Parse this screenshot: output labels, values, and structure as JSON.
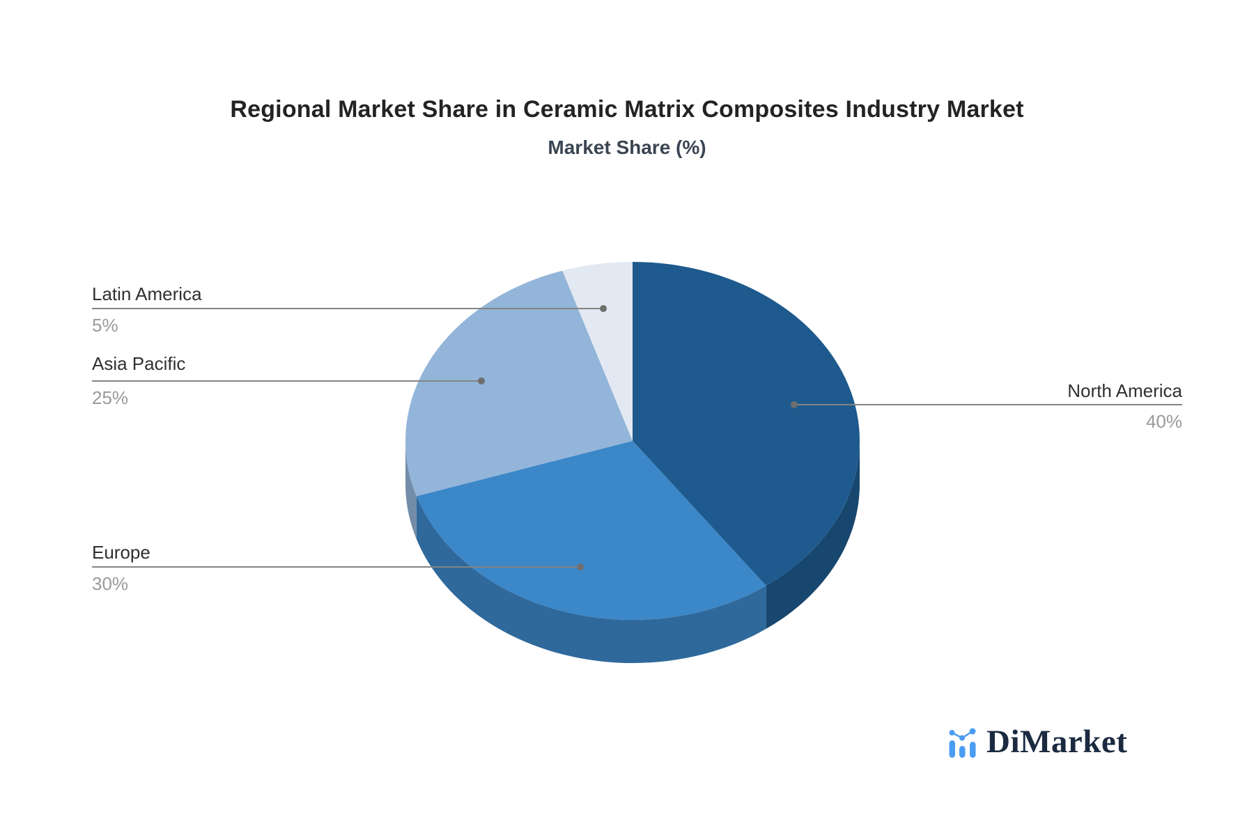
{
  "title": "Regional Market Share in Ceramic Matrix Composites Industry Market",
  "subtitle": "Market Share (%)",
  "brand": {
    "name": "DiMarket",
    "icon": "bar-chart-logo-icon",
    "icon_color": "#4b9df3",
    "text_color": "#1b2a40"
  },
  "colors": {
    "background": "#ffffff",
    "title": "#232323",
    "subtitle": "#3b4552",
    "label_text": "#303030",
    "percent_text": "#9a9a9a",
    "leader_line": "#848484",
    "leader_dot": "#6f6f6f"
  },
  "chart_data": {
    "type": "pie",
    "style": "3d-extruded",
    "title": "Regional Market Share in Ceramic Matrix Composites Industry Market",
    "subtitle": "Market Share (%)",
    "unit": "%",
    "start_angle_deg": 90,
    "direction": "clockwise",
    "legend_position": "callout-labels",
    "slices": [
      {
        "label": "North America",
        "value": 40,
        "display": "40%",
        "color": "#1e5a8d"
      },
      {
        "label": "Europe",
        "value": 30,
        "display": "30%",
        "color": "#3c87c8"
      },
      {
        "label": "Asia Pacific",
        "value": 25,
        "display": "25%",
        "color": "#93b5d9"
      },
      {
        "label": "Latin America",
        "value": 5,
        "display": "5%",
        "color": "#e3e9f2"
      }
    ]
  }
}
